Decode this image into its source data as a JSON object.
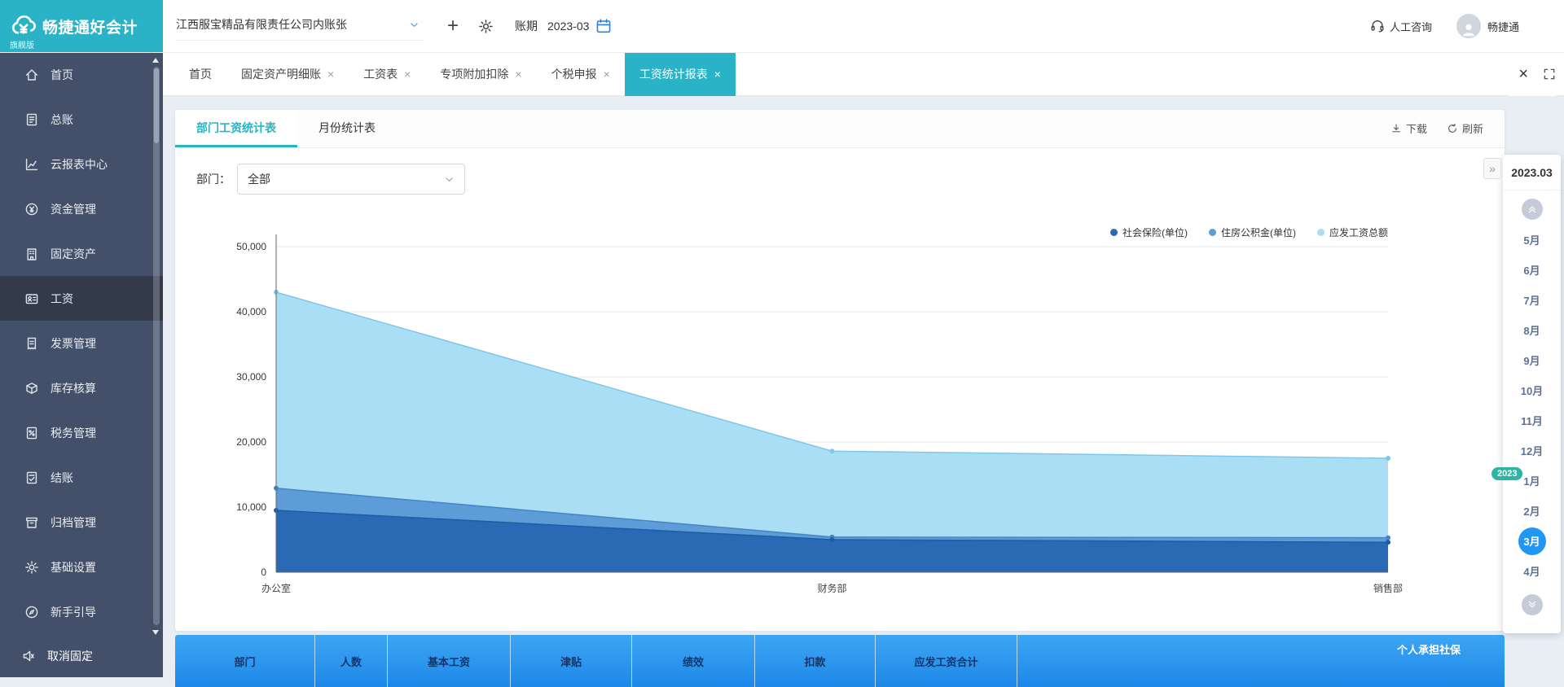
{
  "brand": {
    "name": "畅捷通好会计",
    "edition": "旗舰版"
  },
  "header": {
    "company": "江西服宝精品有限责任公司内账张",
    "period_label": "账期",
    "period_value": "2023-03",
    "support_label": "人工咨询",
    "user_name": "畅捷通"
  },
  "icons": {
    "close": "×",
    "collapse": "»",
    "plus": "+"
  },
  "tab_bar": {
    "tabs": [
      {
        "label": "首页",
        "closable": false,
        "active": false
      },
      {
        "label": "固定资产明细账",
        "closable": true,
        "active": false
      },
      {
        "label": "工资表",
        "closable": true,
        "active": false
      },
      {
        "label": "专项附加扣除",
        "closable": true,
        "active": false
      },
      {
        "label": "个税申报",
        "closable": true,
        "active": false
      },
      {
        "label": "工资统计报表",
        "closable": true,
        "active": true
      }
    ]
  },
  "sidebar": {
    "items": [
      {
        "label": "首页",
        "icon": "home",
        "active": false
      },
      {
        "label": "总账",
        "icon": "ledger",
        "active": false
      },
      {
        "label": "云报表中心",
        "icon": "report",
        "active": false
      },
      {
        "label": "资金管理",
        "icon": "fund",
        "active": false
      },
      {
        "label": "固定资产",
        "icon": "asset",
        "active": false
      },
      {
        "label": "工资",
        "icon": "salary",
        "active": true
      },
      {
        "label": "发票管理",
        "icon": "invoice",
        "active": false
      },
      {
        "label": "库存核算",
        "icon": "inventory",
        "active": false
      },
      {
        "label": "税务管理",
        "icon": "tax",
        "active": false
      },
      {
        "label": "结账",
        "icon": "closing",
        "active": false
      },
      {
        "label": "归档管理",
        "icon": "archive",
        "active": false
      },
      {
        "label": "基础设置",
        "icon": "settings",
        "active": false
      },
      {
        "label": "新手引导",
        "icon": "guide",
        "active": false
      }
    ],
    "footer": {
      "label": "取消固定",
      "icon": "unpin"
    }
  },
  "card": {
    "subtabs": [
      {
        "label": "部门工资统计表",
        "active": true
      },
      {
        "label": "月份统计表",
        "active": false
      }
    ],
    "download_label": "下载",
    "refresh_label": "刷新",
    "filter_label": "部门：",
    "filter_value": "全部"
  },
  "chart_data": {
    "type": "area",
    "title": "",
    "xlabel": "",
    "ylabel": "",
    "categories": [
      "办公室",
      "财务部",
      "销售部"
    ],
    "series": [
      {
        "name": "社会保险(单位)",
        "values": [
          9500,
          5000,
          4600
        ],
        "color": "#2a6ab4",
        "line": "#1c5ea6"
      },
      {
        "name": "住房公积金(单位)",
        "values": [
          12900,
          5400,
          5300
        ],
        "color": "#5e9cd8",
        "line": "#4585c6"
      },
      {
        "name": "应发工资总额",
        "values": [
          43000,
          18600,
          17500
        ],
        "color": "#a9def5",
        "line": "#7fc8e8"
      }
    ],
    "ylim": [
      0,
      50000
    ],
    "ytick_step": 10000,
    "grid": true,
    "legend_position": "top-right"
  },
  "month_panel": {
    "current": "2023.03",
    "year_badge": "2023",
    "months": [
      "5月",
      "6月",
      "7月",
      "8月",
      "9月",
      "10月",
      "11月",
      "12月",
      "1月",
      "2月",
      "3月",
      "4月"
    ],
    "active_month": "3月"
  },
  "bottom_table": {
    "columns": [
      "部门",
      "人数",
      "基本工资",
      "津贴",
      "绩效",
      "扣款",
      "应发工资合计"
    ],
    "group_header": "个人承担社保"
  },
  "colors": {
    "brand": "#2ab3c6",
    "sidebar_bg": "#44506a",
    "sidebar_active": "#333b4a",
    "month_active": "#2196f3",
    "year_badge": "#2cb5a3",
    "table_header_top": "#3ea6f4",
    "table_header_bottom": "#1d87e8"
  }
}
